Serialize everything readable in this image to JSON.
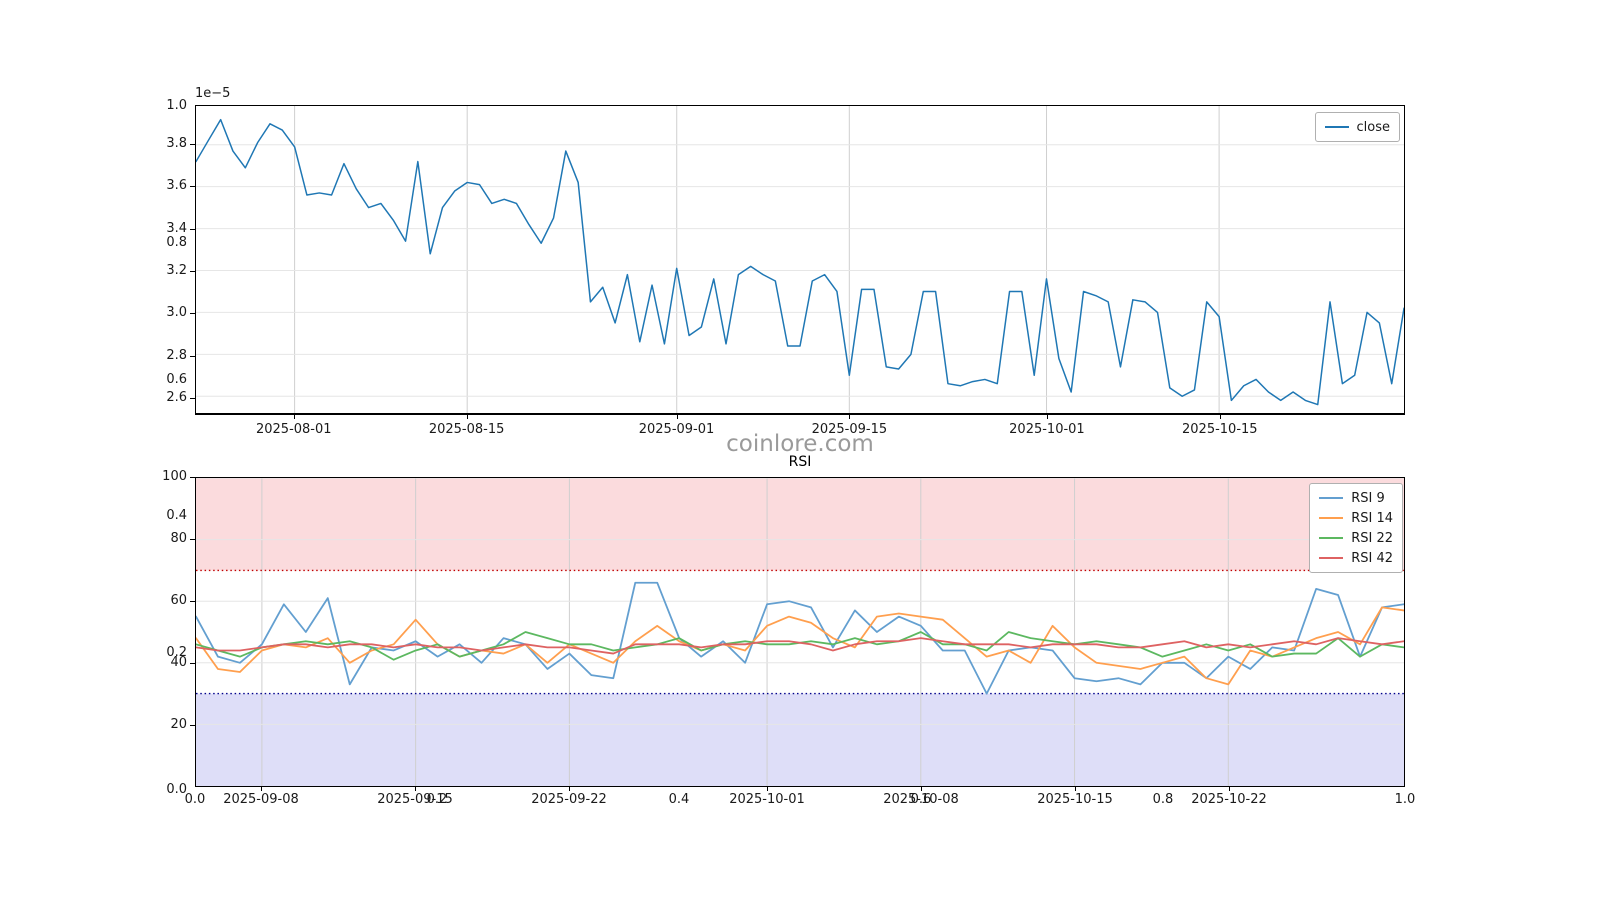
{
  "figure": {
    "watermark": "coinlore.com"
  },
  "overlay_axis": {
    "y_labels": [
      "1.0",
      "0.8",
      "0.6",
      "0.4",
      "0.2",
      "0.0"
    ],
    "x_labels": [
      "0.0",
      "0.2",
      "0.4",
      "0.6",
      "0.8",
      "1.0"
    ]
  },
  "chart_data": [
    {
      "type": "line",
      "name": "price-chart",
      "title": "",
      "offset_text": "1e−5",
      "legend_entries": [
        {
          "label": "close",
          "color": "#1f77b4"
        }
      ],
      "x_tick_labels": [
        "2025-08-01",
        "2025-08-15",
        "2025-09-01",
        "2025-09-15",
        "2025-10-01",
        "2025-10-15"
      ],
      "x_tick_positions": [
        8,
        22,
        39,
        53,
        69,
        83
      ],
      "x_range": [
        0,
        98
      ],
      "y_ticks": [
        3.8,
        3.6,
        3.4,
        3.2,
        3.0,
        2.8,
        2.6
      ],
      "y_tick_labels": [
        "3.8",
        "3.6",
        "3.4",
        "3.2",
        "3.0",
        "2.8",
        "2.6"
      ],
      "ylim": [
        2.52,
        3.985
      ],
      "grid": true,
      "legend_position": "top-right",
      "series": [
        {
          "name": "close",
          "color": "#1f77b4",
          "width": 1.5,
          "values": [
            3.72,
            3.82,
            3.92,
            3.77,
            3.69,
            3.81,
            3.9,
            3.87,
            3.79,
            3.56,
            3.57,
            3.56,
            3.71,
            3.59,
            3.5,
            3.52,
            3.44,
            3.34,
            3.72,
            3.28,
            3.5,
            3.58,
            3.62,
            3.61,
            3.52,
            3.54,
            3.52,
            3.42,
            3.33,
            3.45,
            3.77,
            3.62,
            3.05,
            3.12,
            2.95,
            3.18,
            2.86,
            3.13,
            2.85,
            3.21,
            2.89,
            2.93,
            3.16,
            2.85,
            3.18,
            3.22,
            3.18,
            3.15,
            2.84,
            2.84,
            3.15,
            3.18,
            3.1,
            2.7,
            3.11,
            3.11,
            2.74,
            2.73,
            2.8,
            3.1,
            3.1,
            2.66,
            2.65,
            2.67,
            2.68,
            2.66,
            3.1,
            3.1,
            2.7,
            3.16,
            2.78,
            2.62,
            3.1,
            3.08,
            3.05,
            2.74,
            3.06,
            3.05,
            3.0,
            2.64,
            2.6,
            2.63,
            3.05,
            2.98,
            2.58,
            2.65,
            2.68,
            2.62,
            2.58,
            2.62,
            2.58,
            2.56,
            3.05,
            2.66,
            2.7,
            3.0,
            2.95,
            2.66,
            3.02
          ]
        }
      ]
    },
    {
      "type": "line",
      "name": "rsi-chart",
      "title": "RSI",
      "legend_entries": [
        {
          "label": "RSI 9",
          "color": "#639fd0"
        },
        {
          "label": "RSI 14",
          "color": "#ff9f4e"
        },
        {
          "label": "RSI 22",
          "color": "#5cb860"
        },
        {
          "label": "RSI 42",
          "color": "#de6262"
        }
      ],
      "x_tick_labels": [
        "2025-09-08",
        "2025-09-15",
        "2025-09-22",
        "2025-10-01",
        "2025-10-08",
        "2025-10-15",
        "2025-10-22"
      ],
      "x_tick_positions": [
        3,
        10,
        17,
        26,
        33,
        40,
        47
      ],
      "x_range": [
        0,
        55
      ],
      "y_ticks": [
        100,
        80,
        60,
        40,
        20
      ],
      "y_tick_labels": [
        "100",
        "80",
        "60",
        "40",
        "20"
      ],
      "ylim": [
        0,
        100
      ],
      "grid": true,
      "legend_position": "top-right",
      "bands": [
        {
          "from": 70,
          "to": 100,
          "color": "#fbdbdd",
          "meaning": "overbought-zone"
        },
        {
          "from": 0,
          "to": 30,
          "color": "#dedef8",
          "meaning": "oversold-zone"
        }
      ],
      "hlines": [
        {
          "y": 70,
          "color": "#c00000",
          "style": "dotted"
        },
        {
          "y": 30,
          "color": "#00008b",
          "style": "dotted"
        }
      ],
      "series": [
        {
          "name": "RSI 9",
          "color": "#639fd0",
          "width": 1.8,
          "values": [
            55,
            42,
            40,
            46,
            59,
            50,
            61,
            33,
            45,
            44,
            47,
            42,
            46,
            40,
            48,
            46,
            38,
            43,
            36,
            35,
            66,
            66,
            48,
            42,
            47,
            40,
            59,
            60,
            58,
            45,
            57,
            50,
            55,
            52,
            44,
            44,
            30,
            44,
            45,
            44,
            35,
            34,
            35,
            33,
            40,
            40,
            35,
            42,
            38,
            45,
            44,
            64,
            62,
            42,
            58,
            59
          ]
        },
        {
          "name": "RSI 14",
          "color": "#ff9f4e",
          "width": 1.8,
          "values": [
            48,
            38,
            37,
            44,
            46,
            45,
            48,
            40,
            44,
            46,
            54,
            46,
            42,
            44,
            43,
            46,
            40,
            46,
            43,
            40,
            47,
            52,
            47,
            44,
            46,
            44,
            52,
            55,
            53,
            48,
            45,
            55,
            56,
            55,
            54,
            48,
            42,
            44,
            40,
            52,
            45,
            40,
            39,
            38,
            40,
            42,
            35,
            33,
            44,
            42,
            45,
            48,
            50,
            46,
            58,
            57
          ]
        },
        {
          "name": "RSI 22",
          "color": "#5cb860",
          "width": 1.8,
          "values": [
            46,
            44,
            42,
            45,
            46,
            47,
            46,
            47,
            45,
            41,
            44,
            46,
            42,
            44,
            46,
            50,
            48,
            46,
            46,
            44,
            45,
            46,
            48,
            44,
            46,
            47,
            46,
            46,
            47,
            46,
            48,
            46,
            47,
            50,
            46,
            46,
            44,
            50,
            48,
            47,
            46,
            47,
            46,
            45,
            42,
            44,
            46,
            44,
            46,
            42,
            43,
            43,
            48,
            42,
            46,
            45
          ]
        },
        {
          "name": "RSI 42",
          "color": "#de6262",
          "width": 1.8,
          "values": [
            45,
            44,
            44,
            45,
            46,
            46,
            45,
            46,
            46,
            45,
            46,
            45,
            45,
            44,
            45,
            46,
            45,
            45,
            44,
            43,
            46,
            46,
            46,
            45,
            46,
            46,
            47,
            47,
            46,
            44,
            46,
            47,
            47,
            48,
            47,
            46,
            46,
            46,
            45,
            46,
            46,
            46,
            45,
            45,
            46,
            47,
            45,
            46,
            45,
            46,
            47,
            46,
            48,
            47,
            46,
            47
          ]
        }
      ]
    }
  ]
}
